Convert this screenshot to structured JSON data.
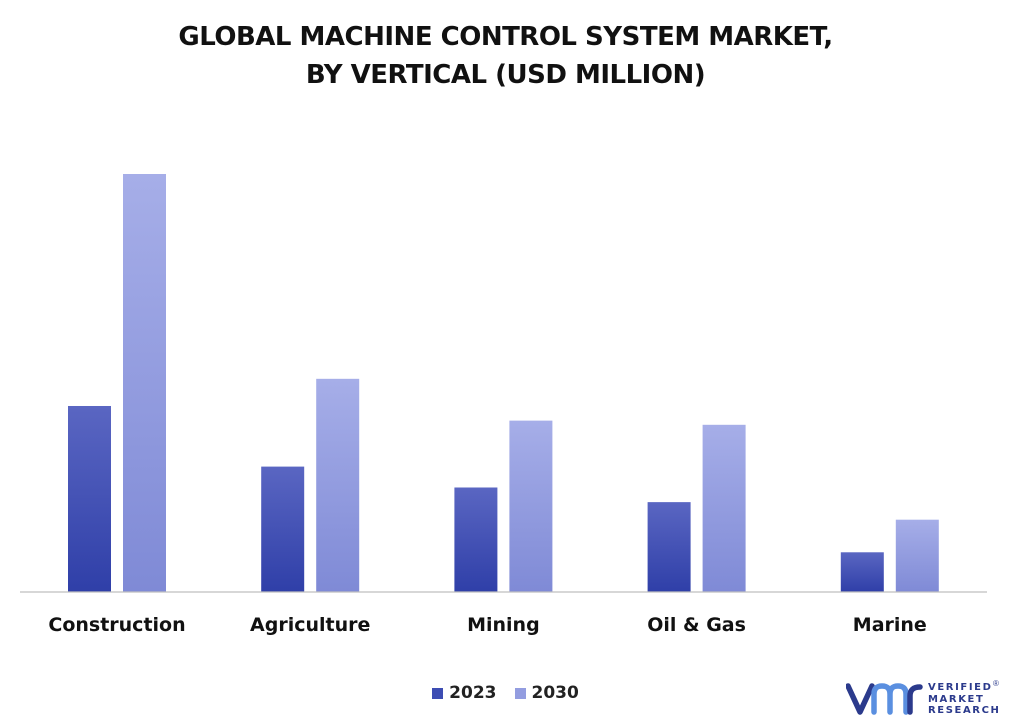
{
  "title_line1": "GLOBAL MACHINE CONTROL SYSTEM MARKET,",
  "title_line2": "BY VERTICAL (USD MILLION)",
  "colors": {
    "series_2023": "#3d4db3",
    "series_2030": "#939de0",
    "axis": "#bfbfbf",
    "text": "#111111",
    "brand": "#2b3a8c"
  },
  "legend": {
    "item_2023": "2023",
    "item_2030": "2030"
  },
  "logo": {
    "line1": "VERIFIED",
    "line2": "MARKET",
    "line3": "RESEARCH",
    "registered": "®"
  },
  "chart_data": {
    "type": "bar",
    "title": "GLOBAL MACHINE CONTROL SYSTEM MARKET, BY VERTICAL (USD MILLION)",
    "categories": [
      "Construction",
      "Agriculture",
      "Mining",
      "Oil & Gas",
      "Marine"
    ],
    "series": [
      {
        "name": "2023",
        "values": [
          44.5,
          30,
          25,
          21.5,
          9.5
        ]
      },
      {
        "name": "2030",
        "values": [
          100,
          51,
          41,
          40,
          17.3
        ]
      }
    ],
    "ylim": [
      0,
      100
    ],
    "grid": false,
    "legend_position": "bottom-center",
    "xlabel": "",
    "ylabel": ""
  }
}
